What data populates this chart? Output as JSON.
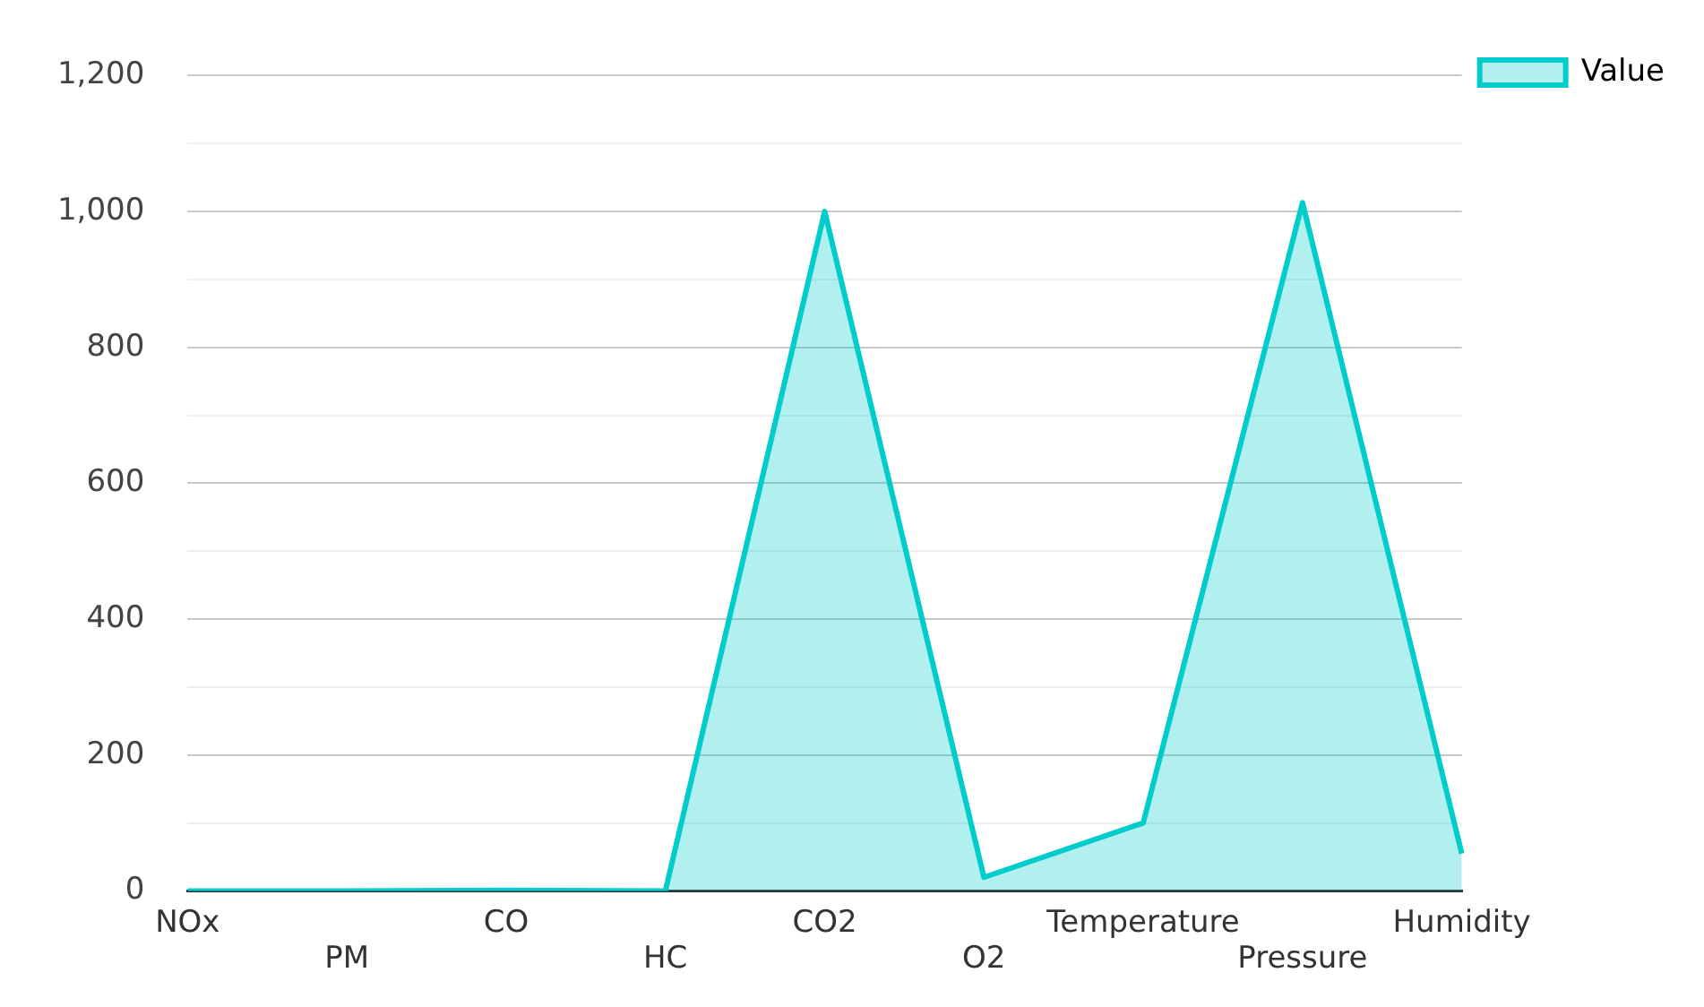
{
  "chart_data": {
    "type": "area",
    "categories": [
      "NOx",
      "PM",
      "CO",
      "HC",
      "CO2",
      "O2",
      "Temperature",
      "Pressure",
      "Humidity"
    ],
    "series": [
      {
        "name": "Value",
        "color": "#00cccc",
        "values": [
          0,
          0,
          1,
          0,
          1000,
          20,
          100,
          1013,
          55
        ]
      }
    ],
    "ylim": [
      0,
      1200
    ],
    "yticks": [
      0,
      {
        "value": 100,
        "label": null
      },
      200,
      {
        "value": 300,
        "label": null
      },
      400,
      {
        "value": 500,
        "label": null
      },
      600,
      {
        "value": 700,
        "label": null
      },
      800,
      {
        "value": 900,
        "label": null
      },
      {
        "value": 1000,
        "label": "1,000"
      },
      {
        "value": 1100,
        "label": null
      },
      {
        "value": 1200,
        "label": "1,200"
      }
    ],
    "grid": "y",
    "legend": "top right",
    "marker": "none",
    "line_style": "solid"
  }
}
